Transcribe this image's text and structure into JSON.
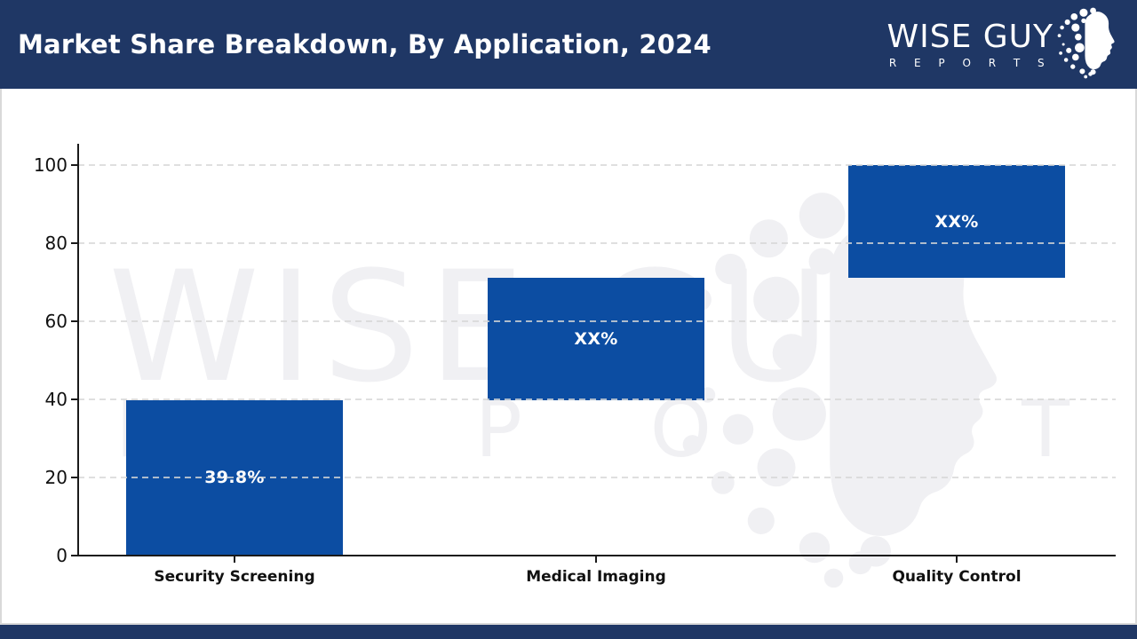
{
  "header": {
    "title": "Market Share Breakdown, By Application, 2024",
    "logo": {
      "line1": "WISE GUY",
      "line2": "R E P O R T S",
      "face_icon": "dotted-face-profile"
    }
  },
  "watermark": {
    "line1": "WISE GUY",
    "line2": "R E P O R T S"
  },
  "footer": {
    "style": "navy-strip"
  },
  "colors": {
    "navy": "#1f3765",
    "bar_blue": "#0c4da2",
    "gridline": "#d7d7d7",
    "axis": "#1a1a1a",
    "watermark": "#f0f0f3"
  },
  "chart_data": {
    "type": "bar",
    "subtype": "waterfall-floating-bars",
    "title": "Market Share Breakdown, By Application, 2024",
    "categories": [
      "Security Screening",
      "Medical Imaging",
      "Quality Control"
    ],
    "series": [
      {
        "name": "Market Share",
        "segments": [
          {
            "category": "Security Screening",
            "start": 0,
            "end": 39.8,
            "label": "39.8%"
          },
          {
            "category": "Medical Imaging",
            "start": 39.8,
            "end": 71.1,
            "label": "XX%"
          },
          {
            "category": "Quality Control",
            "start": 71.1,
            "end": 100,
            "label": "XX%"
          }
        ]
      }
    ],
    "xlabel": "",
    "ylabel": "",
    "ylim": [
      0,
      105
    ],
    "yticks": [
      0,
      20,
      40,
      60,
      80,
      100
    ],
    "grid": "horizontal-dashed",
    "grid_above_bars": true,
    "legend": "none"
  }
}
